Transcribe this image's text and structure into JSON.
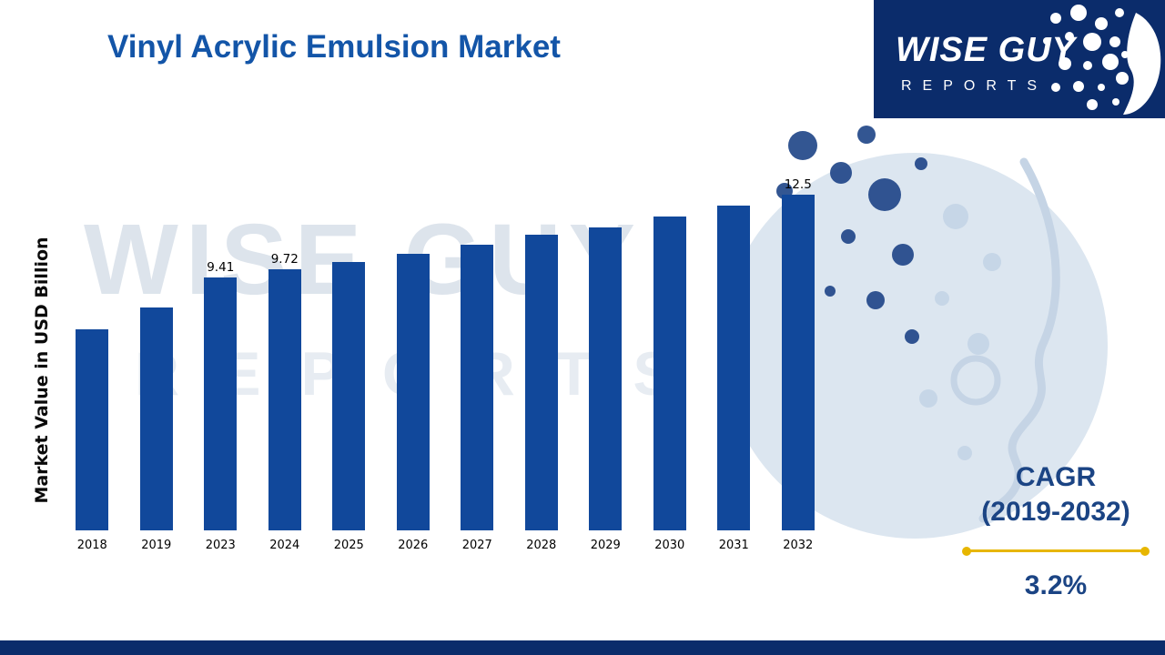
{
  "title": "Vinyl Acrylic Emulsion Market",
  "logo": {
    "name": "WISE GUY",
    "sub": "REPORTS"
  },
  "watermark": {
    "line1": "WISE GUY",
    "line2": "REPORTS"
  },
  "chart_data": {
    "type": "bar",
    "title": "Vinyl Acrylic Emulsion Market",
    "xlabel": "",
    "ylabel": "Market Value in USD Billion",
    "categories": [
      "2018",
      "2019",
      "2023",
      "2024",
      "2025",
      "2026",
      "2027",
      "2028",
      "2029",
      "2030",
      "2031",
      "2032"
    ],
    "values": [
      7.5,
      8.3,
      9.41,
      9.72,
      10.0,
      10.3,
      10.65,
      11.0,
      11.3,
      11.7,
      12.1,
      12.5
    ],
    "bar_labels": [
      "",
      "",
      "9.41",
      "9.72",
      "",
      "",
      "",
      "",
      "",
      "",
      "",
      "12.5"
    ],
    "bar_color": "#11489b",
    "ylim": [
      0,
      13.3
    ],
    "grid": false,
    "legend": false
  },
  "cagr": {
    "label": "CAGR",
    "range": "(2019-2032)",
    "value": "3.2%",
    "accent_color": "#e7b600",
    "text_color": "#1b4484"
  }
}
